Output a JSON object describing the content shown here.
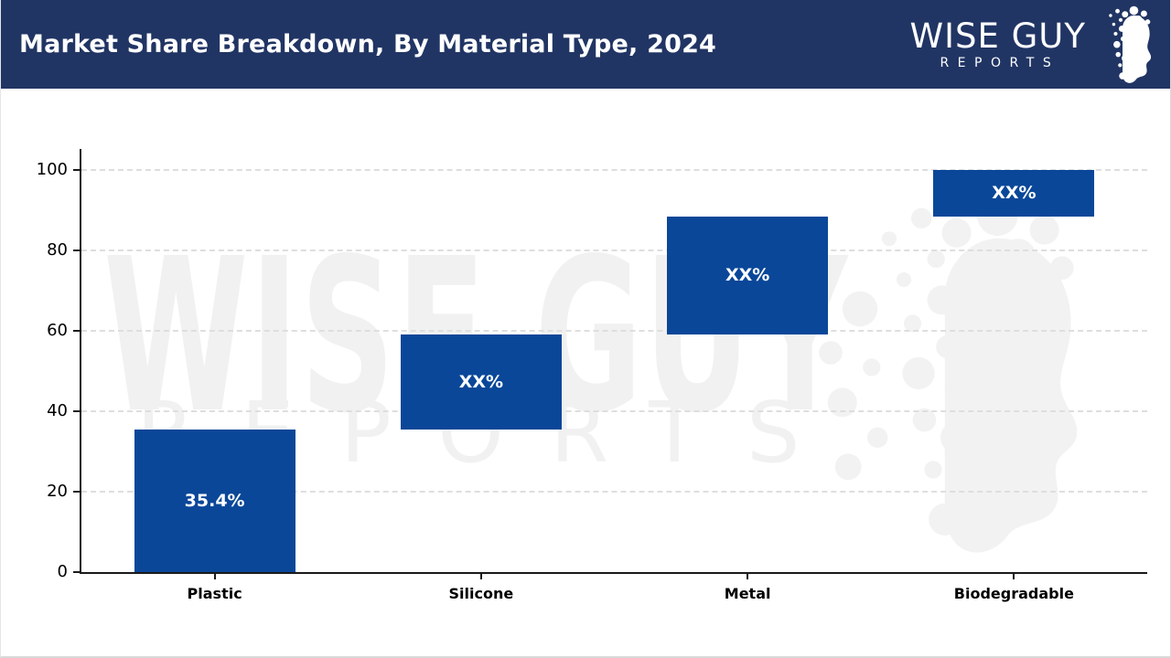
{
  "header": {
    "title": "Market Share Breakdown, By Material Type, 2024",
    "logo": {
      "line1": "WISE GUY",
      "line2": "REPORTS"
    }
  },
  "watermark": {
    "line1": "WISE GUY",
    "line2": "REPORTS"
  },
  "colors": {
    "header_bg": "#213564",
    "bar": "#0a4799",
    "bar_label": "#ffffff",
    "grid": "#dedede",
    "watermark": "#f1f1f1"
  },
  "chart_data": {
    "type": "bar",
    "subtype": "waterfall",
    "title": "Market Share Breakdown, By Material Type, 2024",
    "categories": [
      "Plastic",
      "Silicone",
      "Metal",
      "Biodegradable"
    ],
    "segments": [
      {
        "category": "Plastic",
        "start": 0,
        "end": 35.4,
        "label": "35.4%"
      },
      {
        "category": "Silicone",
        "start": 35.4,
        "end": 59.0,
        "label": "XX%"
      },
      {
        "category": "Metal",
        "start": 59.0,
        "end": 88.5,
        "label": "XX%"
      },
      {
        "category": "Biodegradable",
        "start": 88.5,
        "end": 100,
        "label": "XX%"
      }
    ],
    "y_ticks": [
      0,
      20,
      40,
      60,
      80,
      100
    ],
    "ylim": [
      0,
      105
    ],
    "xlabel": "",
    "ylabel": "",
    "grid": "horizontal-dashed",
    "legend": "none"
  }
}
